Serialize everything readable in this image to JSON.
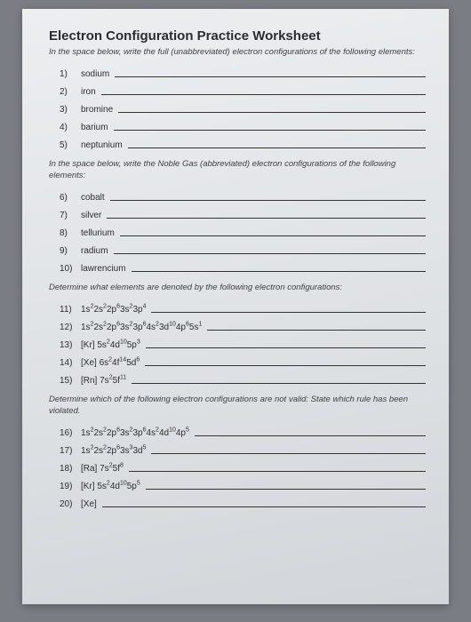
{
  "title": "Electron Configuration Practice Worksheet",
  "section1": {
    "instr": "In the space below, write the full (unabbreviated) electron configurations of the following elements:",
    "items": [
      {
        "n": "1)",
        "label": "sodium"
      },
      {
        "n": "2)",
        "label": "iron"
      },
      {
        "n": "3)",
        "label": "bromine"
      },
      {
        "n": "4)",
        "label": "barium"
      },
      {
        "n": "5)",
        "label": "neptunium"
      }
    ]
  },
  "section2": {
    "instr": "In the space below, write the Noble Gas (abbreviated) electron configurations of the following elements:",
    "items": [
      {
        "n": "6)",
        "label": "cobalt"
      },
      {
        "n": "7)",
        "label": "silver"
      },
      {
        "n": "8)",
        "label": "tellurium"
      },
      {
        "n": "9)",
        "label": "radium"
      },
      {
        "n": "10)",
        "label": "lawrencium"
      }
    ]
  },
  "section3": {
    "instr": "Determine what elements are denoted by the following electron configurations:",
    "items": [
      {
        "n": "11)",
        "labelHtml": "1s<sup>2</sup>2s<sup>2</sup>2p<sup>6</sup>3s<sup>2</sup>3p<sup>4</sup>"
      },
      {
        "n": "12)",
        "labelHtml": "1s<sup>2</sup>2s<sup>2</sup>2p<sup>6</sup>3s<sup>2</sup>3p<sup>6</sup>4s<sup>2</sup>3d<sup>10</sup>4p<sup>6</sup>5s<sup>1</sup>"
      },
      {
        "n": "13)",
        "labelHtml": "[Kr] 5s<sup>2</sup>4d<sup>10</sup>5p<sup>3</sup>"
      },
      {
        "n": "14)",
        "labelHtml": "[Xe] 6s<sup>2</sup>4f<sup>14</sup>5d<sup>6</sup>"
      },
      {
        "n": "15)",
        "labelHtml": "[Rn] 7s<sup>2</sup>5f<sup>11</sup>"
      }
    ]
  },
  "section4": {
    "instr": "Determine which of the following electron configurations are not valid: State which rule has been violated.",
    "items": [
      {
        "n": "16)",
        "labelHtml": "1s<sup>2</sup>2s<sup>2</sup>2p<sup>6</sup>3s<sup>2</sup>3p<sup>6</sup>4s<sup>2</sup>4d<sup>10</sup>4p<sup>5</sup>"
      },
      {
        "n": "17)",
        "labelHtml": "1s<sup>2</sup>2s<sup>2</sup>2p<sup>6</sup>3s<sup>3</sup>3d<sup>5</sup>"
      },
      {
        "n": "18)",
        "labelHtml": "[Ra] 7s<sup>2</sup>5f<sup>8</sup>"
      },
      {
        "n": "19)",
        "labelHtml": "[Kr] 5s<sup>2</sup>4d<sup>10</sup>5p<sup>5</sup>"
      },
      {
        "n": "20)",
        "labelHtml": "[Xe]"
      }
    ]
  }
}
